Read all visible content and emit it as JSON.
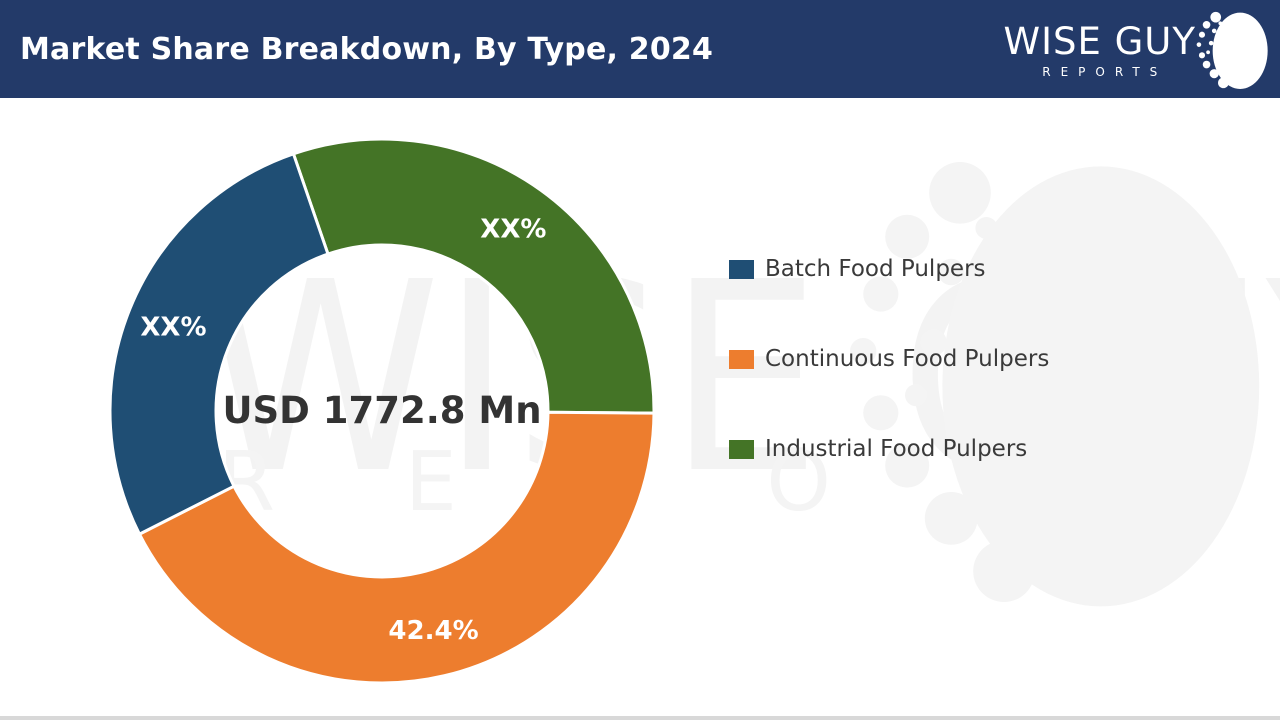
{
  "header": {
    "title": "Market Share Breakdown, By Type, 2024",
    "background_color": "#233A69",
    "logo": {
      "line1": "WISE GUY",
      "line2": "REPORTS"
    }
  },
  "watermark": {
    "line1": "WISE GUY",
    "line2": "R E P O R T S"
  },
  "chart_data": {
    "type": "pie",
    "subtype": "donut",
    "title": "Market Share Breakdown, By Type, 2024",
    "center_label": "USD 1772.8 Mn",
    "start_angle_deg": -19,
    "direction": "clockwise",
    "inner_radius_ratio": 0.61,
    "slices": [
      {
        "name": "Industrial Food Pulpers",
        "value_pct": 30.4,
        "data_label": "XX%",
        "color": "#447426"
      },
      {
        "name": "Continuous Food Pulpers",
        "value_pct": 42.4,
        "data_label": "42.4%",
        "color": "#ED7D2E"
      },
      {
        "name": "Batch Food Pulpers",
        "value_pct": 27.2,
        "data_label": "XX%",
        "color": "#1F4E74"
      }
    ],
    "legend": {
      "position": "right",
      "items": [
        {
          "label": "Batch Food Pulpers",
          "color": "#1F4E74"
        },
        {
          "label": "Continuous Food Pulpers",
          "color": "#ED7D2E"
        },
        {
          "label": "Industrial Food Pulpers",
          "color": "#447426"
        }
      ]
    }
  },
  "colors": {
    "header_navy": "#233A69",
    "blue": "#1F4E74",
    "orange": "#ED7D2E",
    "green": "#447426",
    "center_text": "#333333",
    "bottom_strip": "#d8d8d8"
  }
}
